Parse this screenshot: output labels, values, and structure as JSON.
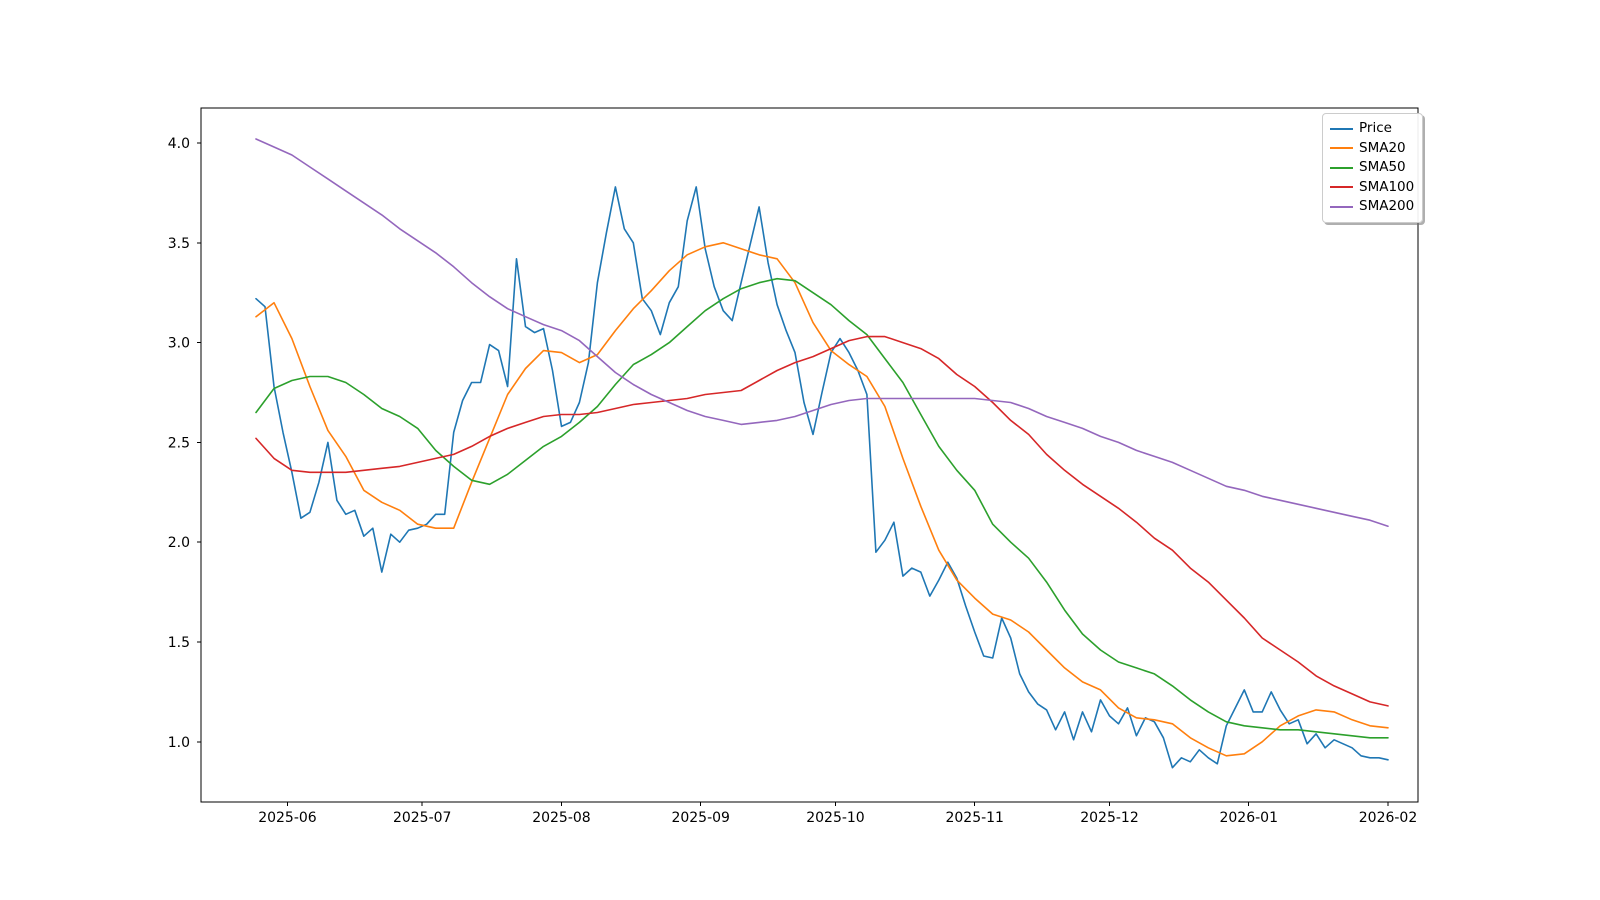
{
  "figure": {
    "background": "#ffffff",
    "spine_color": "#000000"
  },
  "chart_data": {
    "type": "line",
    "title": "",
    "xlabel": "",
    "ylabel": "",
    "grid": false,
    "x_start_date": "2025-05-25",
    "x_unit": "days",
    "x_total_days": 252,
    "x_ticks": [
      {
        "day": 7,
        "label": "2025-06"
      },
      {
        "day": 37,
        "label": "2025-07"
      },
      {
        "day": 68,
        "label": "2025-08"
      },
      {
        "day": 99,
        "label": "2025-09"
      },
      {
        "day": 129,
        "label": "2025-10"
      },
      {
        "day": 160,
        "label": "2025-11"
      },
      {
        "day": 190,
        "label": "2025-12"
      },
      {
        "day": 221,
        "label": "2026-01"
      },
      {
        "day": 252,
        "label": "2026-02"
      }
    ],
    "y_ticks": [
      {
        "value": 1.0,
        "label": "1.0"
      },
      {
        "value": 1.5,
        "label": "1.5"
      },
      {
        "value": 2.0,
        "label": "2.0"
      },
      {
        "value": 2.5,
        "label": "2.5"
      },
      {
        "value": 3.0,
        "label": "3.0"
      },
      {
        "value": 3.5,
        "label": "3.5"
      },
      {
        "value": 4.0,
        "label": "4.0"
      }
    ],
    "ylim": [
      0.7,
      4.18
    ],
    "legend": {
      "position": "upper right",
      "entries": [
        "Price",
        "SMA20",
        "SMA50",
        "SMA100",
        "SMA200"
      ]
    },
    "series": [
      {
        "name": "Price",
        "color": "#1f77b4",
        "sample_step_days": 2,
        "values": [
          3.22,
          3.18,
          2.78,
          2.55,
          2.35,
          2.12,
          2.15,
          2.3,
          2.5,
          2.21,
          2.14,
          2.16,
          2.03,
          2.07,
          1.85,
          2.04,
          2.0,
          2.06,
          2.07,
          2.09,
          2.14,
          2.14,
          2.55,
          2.71,
          2.8,
          2.8,
          2.99,
          2.96,
          2.78,
          3.42,
          3.08,
          3.05,
          3.07,
          2.86,
          2.58,
          2.6,
          2.7,
          2.9,
          3.3,
          3.55,
          3.78,
          3.57,
          3.5,
          3.22,
          3.16,
          3.04,
          3.2,
          3.28,
          3.61,
          3.78,
          3.47,
          3.28,
          3.16,
          3.11,
          3.3,
          3.49,
          3.68,
          3.4,
          3.19,
          3.06,
          2.95,
          2.7,
          2.54,
          2.75,
          2.95,
          3.02,
          2.95,
          2.86,
          2.74,
          1.95,
          2.01,
          2.1,
          1.83,
          1.87,
          1.85,
          1.73,
          1.81,
          1.9,
          1.82,
          1.68,
          1.55,
          1.43,
          1.42,
          1.62,
          1.52,
          1.34,
          1.25,
          1.19,
          1.16,
          1.06,
          1.15,
          1.01,
          1.15,
          1.05,
          1.21,
          1.13,
          1.09,
          1.17,
          1.03,
          1.12,
          1.1,
          1.02,
          0.87,
          0.92,
          0.9,
          0.96,
          0.92,
          0.89,
          1.08,
          1.17,
          1.26,
          1.15,
          1.15,
          1.25,
          1.16,
          1.09,
          1.11,
          0.99,
          1.04,
          0.97,
          1.01,
          0.99,
          0.97,
          0.93,
          0.92,
          0.92,
          0.91
        ]
      },
      {
        "name": "SMA20",
        "color": "#ff7f0e",
        "sample_step_days": 4,
        "values": [
          3.13,
          3.2,
          3.02,
          2.78,
          2.56,
          2.43,
          2.26,
          2.2,
          2.16,
          2.09,
          2.07,
          2.07,
          2.3,
          2.52,
          2.74,
          2.87,
          2.96,
          2.95,
          2.9,
          2.94,
          3.06,
          3.17,
          3.26,
          3.36,
          3.44,
          3.48,
          3.5,
          3.47,
          3.44,
          3.42,
          3.3,
          3.1,
          2.96,
          2.89,
          2.83,
          2.68,
          2.42,
          2.18,
          1.96,
          1.81,
          1.72,
          1.64,
          1.61,
          1.55,
          1.46,
          1.37,
          1.3,
          1.26,
          1.17,
          1.12,
          1.11,
          1.09,
          1.02,
          0.97,
          0.93,
          0.94,
          1.0,
          1.08,
          1.13,
          1.16,
          1.15,
          1.11,
          1.08,
          1.07
        ]
      },
      {
        "name": "SMA50",
        "color": "#2ca02c",
        "sample_step_days": 4,
        "values": [
          2.65,
          2.77,
          2.81,
          2.83,
          2.83,
          2.8,
          2.74,
          2.67,
          2.63,
          2.57,
          2.46,
          2.38,
          2.31,
          2.29,
          2.34,
          2.41,
          2.48,
          2.53,
          2.6,
          2.68,
          2.79,
          2.89,
          2.94,
          3.0,
          3.08,
          3.16,
          3.22,
          3.27,
          3.3,
          3.32,
          3.31,
          3.25,
          3.19,
          3.11,
          3.04,
          2.92,
          2.8,
          2.64,
          2.48,
          2.36,
          2.26,
          2.09,
          2.0,
          1.92,
          1.8,
          1.66,
          1.54,
          1.46,
          1.4,
          1.37,
          1.34,
          1.28,
          1.21,
          1.15,
          1.1,
          1.08,
          1.07,
          1.06,
          1.06,
          1.05,
          1.04,
          1.03,
          1.02,
          1.02
        ]
      },
      {
        "name": "SMA100",
        "color": "#d62728",
        "sample_step_days": 4,
        "values": [
          2.52,
          2.42,
          2.36,
          2.35,
          2.35,
          2.35,
          2.36,
          2.37,
          2.38,
          2.4,
          2.42,
          2.44,
          2.48,
          2.53,
          2.57,
          2.6,
          2.63,
          2.64,
          2.64,
          2.65,
          2.67,
          2.69,
          2.7,
          2.71,
          2.72,
          2.74,
          2.75,
          2.76,
          2.81,
          2.86,
          2.9,
          2.93,
          2.97,
          3.01,
          3.03,
          3.03,
          3.0,
          2.97,
          2.92,
          2.84,
          2.78,
          2.7,
          2.61,
          2.54,
          2.44,
          2.36,
          2.29,
          2.23,
          2.17,
          2.1,
          2.02,
          1.96,
          1.87,
          1.8,
          1.71,
          1.62,
          1.52,
          1.46,
          1.4,
          1.33,
          1.28,
          1.24,
          1.2,
          1.18
        ]
      },
      {
        "name": "SMA200",
        "color": "#9467bd",
        "sample_step_days": 4,
        "values": [
          4.02,
          3.98,
          3.94,
          3.88,
          3.82,
          3.76,
          3.7,
          3.64,
          3.57,
          3.51,
          3.45,
          3.38,
          3.3,
          3.23,
          3.17,
          3.13,
          3.09,
          3.06,
          3.01,
          2.93,
          2.85,
          2.79,
          2.74,
          2.7,
          2.66,
          2.63,
          2.61,
          2.59,
          2.6,
          2.61,
          2.63,
          2.66,
          2.69,
          2.71,
          2.72,
          2.72,
          2.72,
          2.72,
          2.72,
          2.72,
          2.72,
          2.71,
          2.7,
          2.67,
          2.63,
          2.6,
          2.57,
          2.53,
          2.5,
          2.46,
          2.43,
          2.4,
          2.36,
          2.32,
          2.28,
          2.26,
          2.23,
          2.21,
          2.19,
          2.17,
          2.15,
          2.13,
          2.11,
          2.08
        ]
      }
    ]
  }
}
